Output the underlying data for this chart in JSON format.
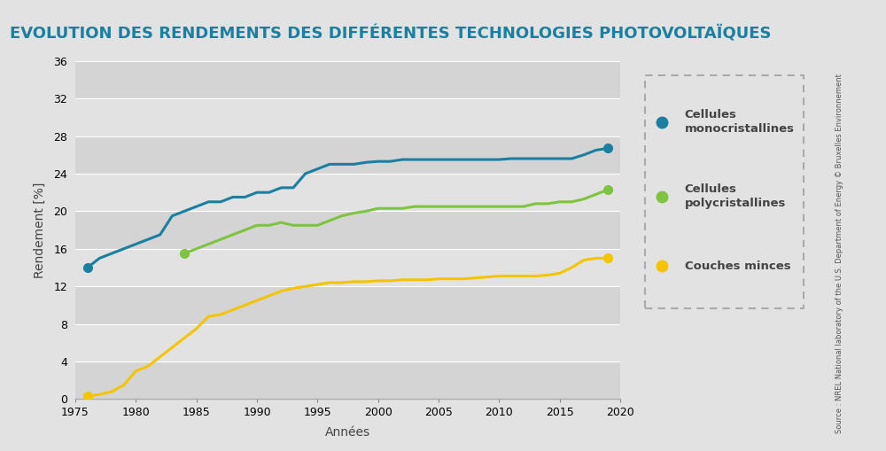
{
  "title": "EVOLUTION DES RENDEMENTS DES DIFFÉRENTES TECHNOLOGIES PHOTOVOLTAÏQUES",
  "title_color": "#1a7fa0",
  "title_bg": "#ffffff",
  "bg_color": "#e2e2e2",
  "plot_bg_light": "#d4d4d4",
  "plot_bg_dark": "#e2e2e2",
  "xlabel": "Années",
  "ylabel": "Rendement [%]",
  "xlim": [
    1975,
    2020
  ],
  "ylim": [
    0,
    36
  ],
  "yticks": [
    0,
    4,
    8,
    12,
    16,
    20,
    24,
    28,
    32,
    36
  ],
  "xticks": [
    1975,
    1980,
    1985,
    1990,
    1995,
    2000,
    2005,
    2010,
    2015,
    2020
  ],
  "source_text": "Source : NREL National laboratory of the U.S. Department of Energy © Bruxelles Environnement",
  "mono_color": "#1a7fa0",
  "poly_color": "#7ec440",
  "couche_color": "#f5c400",
  "mono_label": "Cellules\nmonocristallines",
  "poly_label": "Cellules\npolycristallines",
  "couche_label": "Couches minces",
  "mono_x": [
    1976,
    1977,
    1978,
    1979,
    1980,
    1981,
    1982,
    1983,
    1984,
    1985,
    1986,
    1987,
    1988,
    1989,
    1990,
    1991,
    1992,
    1993,
    1994,
    1995,
    1996,
    1997,
    1998,
    1999,
    2000,
    2001,
    2002,
    2003,
    2004,
    2005,
    2006,
    2007,
    2008,
    2009,
    2010,
    2011,
    2012,
    2013,
    2014,
    2015,
    2016,
    2017,
    2018,
    2019
  ],
  "mono_y": [
    14.0,
    15.0,
    15.5,
    16.0,
    16.5,
    17.0,
    17.5,
    19.5,
    20.0,
    20.5,
    21.0,
    21.0,
    21.5,
    21.5,
    22.0,
    22.0,
    22.5,
    22.5,
    24.0,
    24.5,
    25.0,
    25.0,
    25.0,
    25.2,
    25.3,
    25.3,
    25.5,
    25.5,
    25.5,
    25.5,
    25.5,
    25.5,
    25.5,
    25.5,
    25.5,
    25.6,
    25.6,
    25.6,
    25.6,
    25.6,
    25.6,
    26.0,
    26.5,
    26.7
  ],
  "poly_x": [
    1984,
    1985,
    1986,
    1987,
    1988,
    1989,
    1990,
    1991,
    1992,
    1993,
    1994,
    1995,
    1996,
    1997,
    1998,
    1999,
    2000,
    2001,
    2002,
    2003,
    2004,
    2005,
    2006,
    2007,
    2008,
    2009,
    2010,
    2011,
    2012,
    2013,
    2014,
    2015,
    2016,
    2017,
    2018,
    2019
  ],
  "poly_y": [
    15.5,
    16.0,
    16.5,
    17.0,
    17.5,
    18.0,
    18.5,
    18.5,
    18.8,
    18.5,
    18.5,
    18.5,
    19.0,
    19.5,
    19.8,
    20.0,
    20.3,
    20.3,
    20.3,
    20.5,
    20.5,
    20.5,
    20.5,
    20.5,
    20.5,
    20.5,
    20.5,
    20.5,
    20.5,
    20.8,
    20.8,
    21.0,
    21.0,
    21.3,
    21.8,
    22.3
  ],
  "couche_x": [
    1976,
    1977,
    1978,
    1979,
    1980,
    1981,
    1982,
    1983,
    1984,
    1985,
    1986,
    1987,
    1988,
    1989,
    1990,
    1991,
    1992,
    1993,
    1994,
    1995,
    1996,
    1997,
    1998,
    1999,
    2000,
    2001,
    2002,
    2003,
    2004,
    2005,
    2006,
    2007,
    2008,
    2009,
    2010,
    2011,
    2012,
    2013,
    2014,
    2015,
    2016,
    2017,
    2018,
    2019
  ],
  "couche_y": [
    0.3,
    0.5,
    0.8,
    1.5,
    3.0,
    3.5,
    4.5,
    5.5,
    6.5,
    7.5,
    8.8,
    9.0,
    9.5,
    10.0,
    10.5,
    11.0,
    11.5,
    11.8,
    12.0,
    12.2,
    12.4,
    12.4,
    12.5,
    12.5,
    12.6,
    12.6,
    12.7,
    12.7,
    12.7,
    12.8,
    12.8,
    12.8,
    12.9,
    13.0,
    13.1,
    13.1,
    13.1,
    13.1,
    13.2,
    13.4,
    14.0,
    14.8,
    15.0,
    15.0
  ],
  "line_width": 2.2,
  "marker_size": 7,
  "axis_label_fontsize": 10,
  "tick_fontsize": 9,
  "title_fontsize": 13,
  "legend_fontsize": 9.5
}
